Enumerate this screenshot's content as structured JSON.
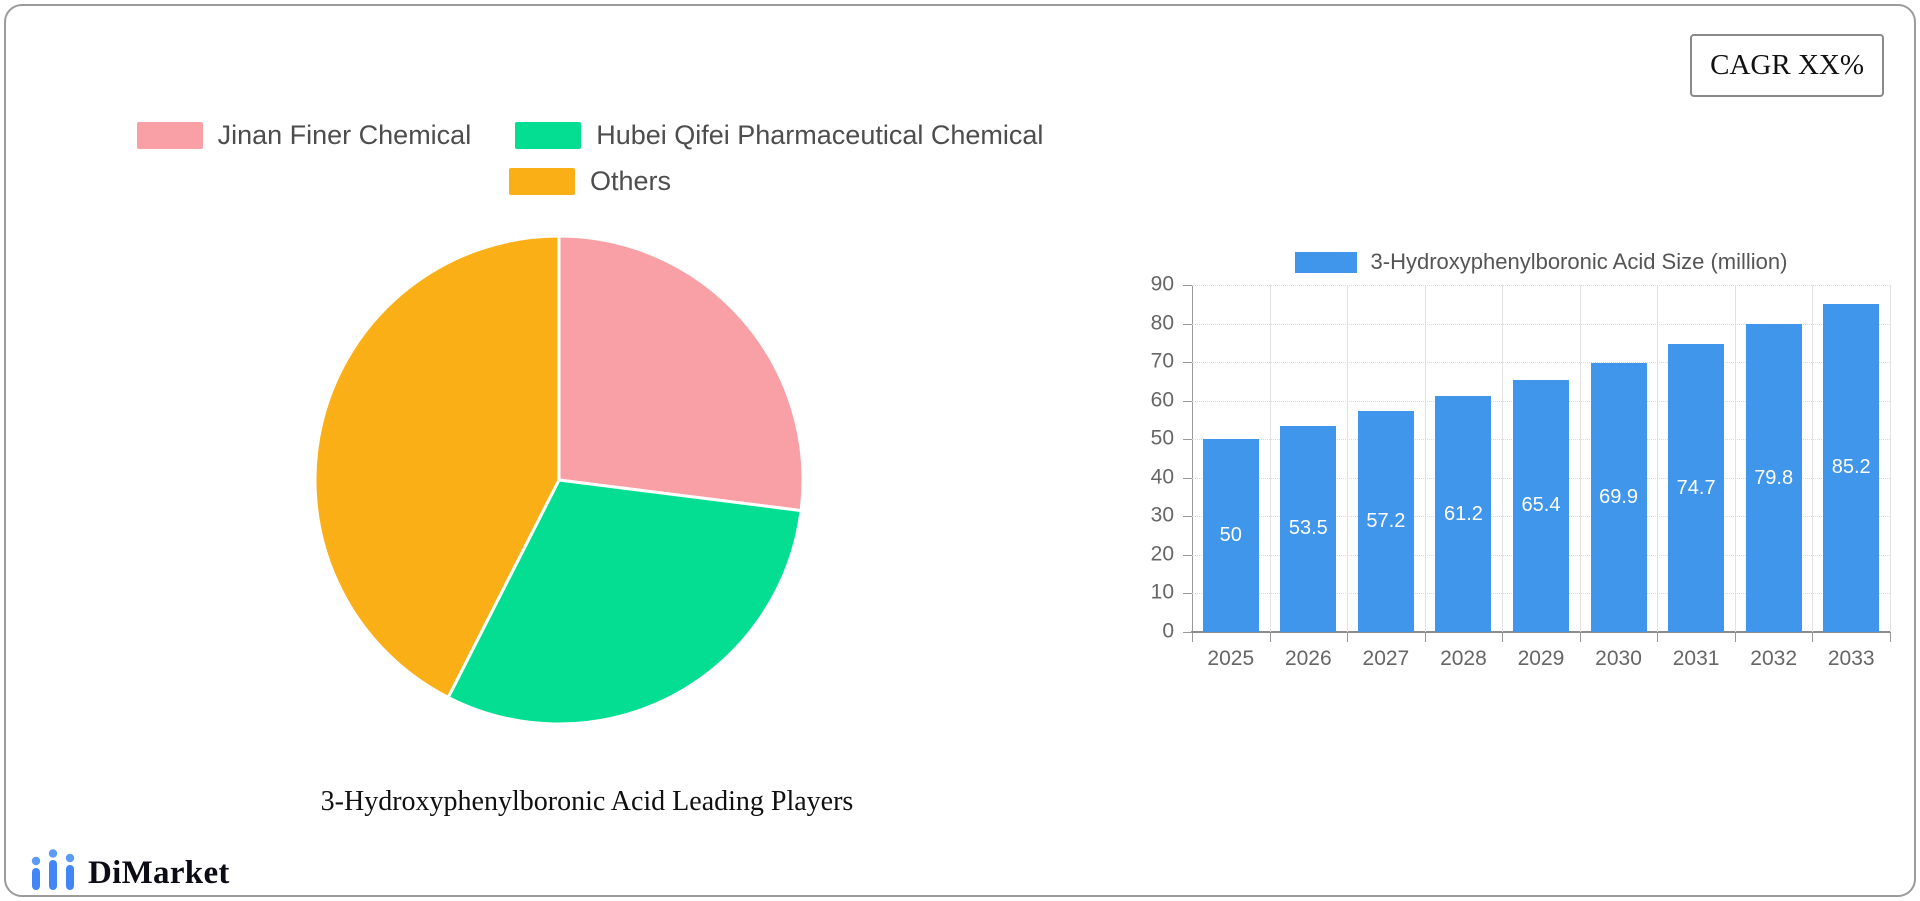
{
  "cagr_label": "CAGR XX%",
  "brand": {
    "name": "DiMarket",
    "icon": "bar-chart-logo-icon"
  },
  "colors": {
    "pie_pink": "#F8A0A5",
    "pie_green": "#03DE92",
    "pie_orange": "#FBAF17",
    "bar_blue": "#4096EA",
    "axis_line": "#999999",
    "tick_label": "#666666",
    "legend_text": "#4D4D4D",
    "card_border": "#9B9B9B",
    "bar_value_label": "#FFFFFF"
  },
  "chart_data": [
    {
      "type": "pie",
      "title": "3-Hydroxyphenylboronic Acid Leading Players",
      "direction": "clockwise",
      "start_angle_deg": 0,
      "legend_position": "top",
      "units": "percent (estimated from arc angles)",
      "slices": [
        {
          "label": "Jinan Finer Chemical",
          "value": 27,
          "color": "#F8A0A5"
        },
        {
          "label": "Hubei Qifei Pharmaceutical Chemical",
          "value": 30.5,
          "color": "#03DE92"
        },
        {
          "label": "Others",
          "value": 42.5,
          "color": "#FBAF17"
        }
      ]
    },
    {
      "type": "bar",
      "legend": "3-Hydroxyphenylboronic Acid Size (million)",
      "categories": [
        "2025",
        "2026",
        "2027",
        "2028",
        "2029",
        "2030",
        "2031",
        "2032",
        "2033"
      ],
      "values": [
        50,
        53.5,
        57.2,
        61.2,
        65.4,
        69.9,
        74.7,
        79.8,
        85.2
      ],
      "value_labels": [
        "50",
        "53.5",
        "57.2",
        "61.2",
        "65.4",
        "69.9",
        "74.7",
        "79.8",
        "85.2"
      ],
      "ylim": [
        0,
        90
      ],
      "ytick_step": 10,
      "grid": true,
      "bar_color": "#4096EA",
      "legend_position": "top"
    }
  ]
}
